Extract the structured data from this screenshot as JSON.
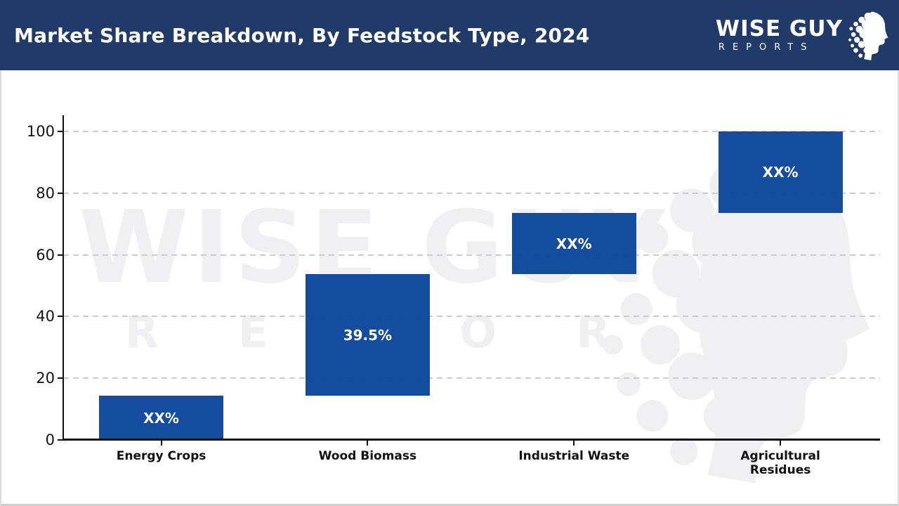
{
  "header": {
    "title": "Market Share Breakdown, By Feedstock Type, 2024",
    "logo": {
      "line1": "WISE GUY",
      "line2": "REPORTS"
    }
  },
  "watermark": {
    "line1": "WISE GUY",
    "line2": "R E P O R T S"
  },
  "colors": {
    "header_bg": "#203a69",
    "bar": "#07429b",
    "grid": "#cccccc",
    "watermark": "#f0f0f2"
  },
  "chart_data": {
    "type": "bar",
    "subtype": "waterfall",
    "title": "Market Share Breakdown, By Feedstock Type, 2024",
    "categories": [
      "Energy Crops",
      "Wood Biomass",
      "Industrial Waste",
      "Agricultural Residues"
    ],
    "segments": [
      {
        "category": "Energy Crops",
        "start": 0,
        "end": 14.3,
        "value": 14.3,
        "label": "XX%"
      },
      {
        "category": "Wood Biomass",
        "start": 14.3,
        "end": 53.8,
        "value": 39.5,
        "label": "39.5%"
      },
      {
        "category": "Industrial Waste",
        "start": 53.8,
        "end": 73.5,
        "value": 19.7,
        "label": "XX%"
      },
      {
        "category": "Agricultural Residues",
        "start": 73.5,
        "end": 100,
        "value": 26.5,
        "label": "XX%"
      }
    ],
    "ylim": [
      0,
      100
    ],
    "yticks": [
      0,
      20,
      40,
      60,
      80,
      100
    ],
    "xlabel": "",
    "ylabel": "",
    "grid": "horizontal dashed",
    "legend": "none",
    "bar_color": "#07429b"
  }
}
